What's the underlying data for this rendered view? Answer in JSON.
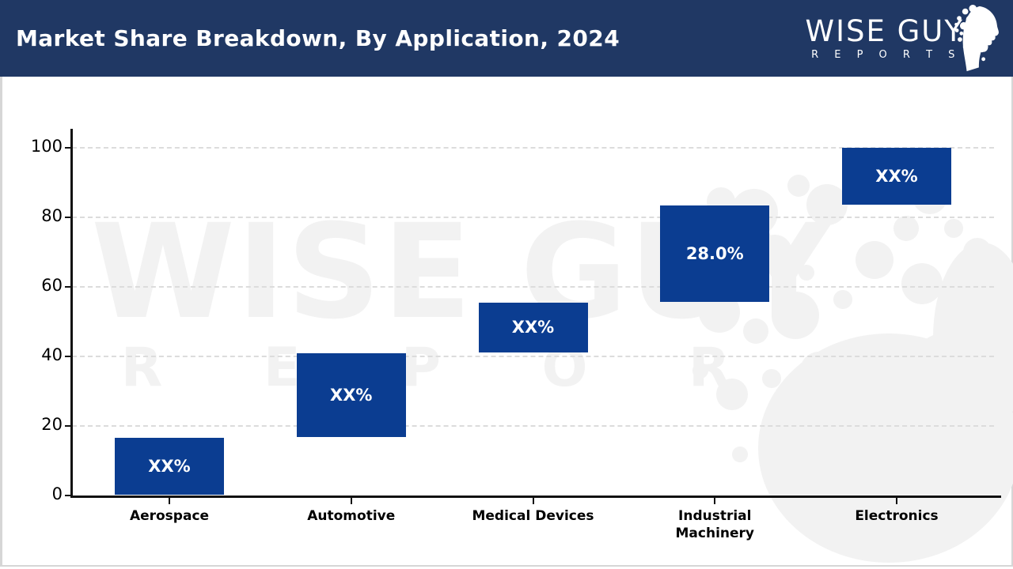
{
  "header": {
    "title": "Market Share Breakdown, By Application, 2024",
    "logo": {
      "brand": "WISE GUY",
      "sub": "R E P O R T S"
    }
  },
  "watermark": {
    "brand": "WISE GUY",
    "sub": "R E P O R T S"
  },
  "colors": {
    "header_bg": "#203864",
    "bar": "#0b3d91",
    "bar_label": "#ffffff",
    "axis": "#111111",
    "grid": "#dcdcdc",
    "watermark": "#f2f2f2",
    "border": "#d6d6d6"
  },
  "chart_data": {
    "type": "bar",
    "subtype": "waterfall-percent-breakdown",
    "title": "Market Share Breakdown, By Application, 2024",
    "categories": [
      "Aerospace",
      "Automotive",
      "Medical Devices",
      "Industrial\nMachinery",
      "Electronics"
    ],
    "bars": [
      {
        "category": "Aerospace",
        "start": 0,
        "end": 16.5,
        "value_label": "XX%"
      },
      {
        "category": "Automotive",
        "start": 16.5,
        "end": 41.0,
        "value_label": "XX%"
      },
      {
        "category": "Medical Devices",
        "start": 41.0,
        "end": 55.5,
        "value_label": "XX%"
      },
      {
        "category": "Industrial\nMachinery",
        "start": 55.5,
        "end": 83.5,
        "value_label": "28.0%"
      },
      {
        "category": "Electronics",
        "start": 83.5,
        "end": 100.0,
        "value_label": "XX%"
      }
    ],
    "xlabel": "",
    "ylabel": "",
    "ylim": [
      0,
      105.5
    ],
    "yticks": [
      0,
      20,
      40,
      60,
      80,
      100
    ],
    "grid": "horizontal-dashed",
    "legend": "none"
  }
}
